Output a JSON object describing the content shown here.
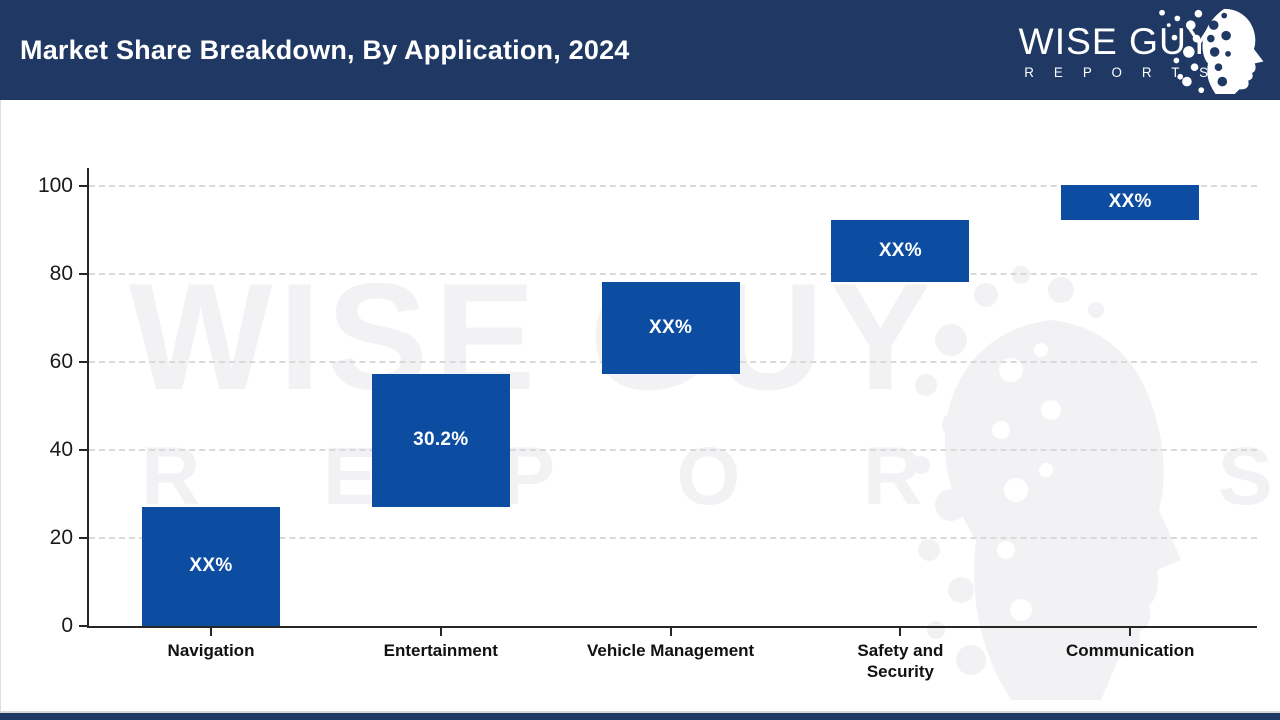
{
  "header": {
    "title": "Market Share Breakdown, By Application, 2024",
    "logo": {
      "line1": "WISE GUY",
      "line2": "R E P O R T S"
    }
  },
  "watermark": {
    "line1": "WISE GUY",
    "line2": "R E P O R T S"
  },
  "colors": {
    "header_bg": "#1f3864",
    "bar": "#0c4da2",
    "grid": "#d9d9d9",
    "axis": "#262626",
    "bar_label": "#ffffff",
    "tick_text": "#1a1a1a",
    "watermark": "#f2f2f4"
  },
  "chart_data": {
    "type": "bar",
    "subtype": "waterfall",
    "title": "Market Share Breakdown, By Application, 2024",
    "xlabel": "",
    "ylabel": "",
    "ylim": [
      0,
      105
    ],
    "yticks": [
      0,
      20,
      40,
      60,
      80,
      100
    ],
    "grid": "horizontal-dashed",
    "legend": "none",
    "categories": [
      "Navigation",
      "Entertainment",
      "Vehicle Management",
      "Safety and\nSecurity",
      "Communication"
    ],
    "bars": [
      {
        "category": "Navigation",
        "label": "XX%",
        "start": 0,
        "end": 27.1,
        "size": 27.1
      },
      {
        "category": "Entertainment",
        "label": "30.2%",
        "start": 27.1,
        "end": 57.3,
        "size": 30.2
      },
      {
        "category": "Vehicle Management",
        "label": "XX%",
        "start": 57.3,
        "end": 78.2,
        "size": 20.9
      },
      {
        "category": "Safety and\nSecurity",
        "label": "XX%",
        "start": 78.2,
        "end": 92.3,
        "size": 14.1
      },
      {
        "category": "Communication",
        "label": "XX%",
        "start": 92.3,
        "end": 100.2,
        "size": 7.9
      }
    ]
  }
}
